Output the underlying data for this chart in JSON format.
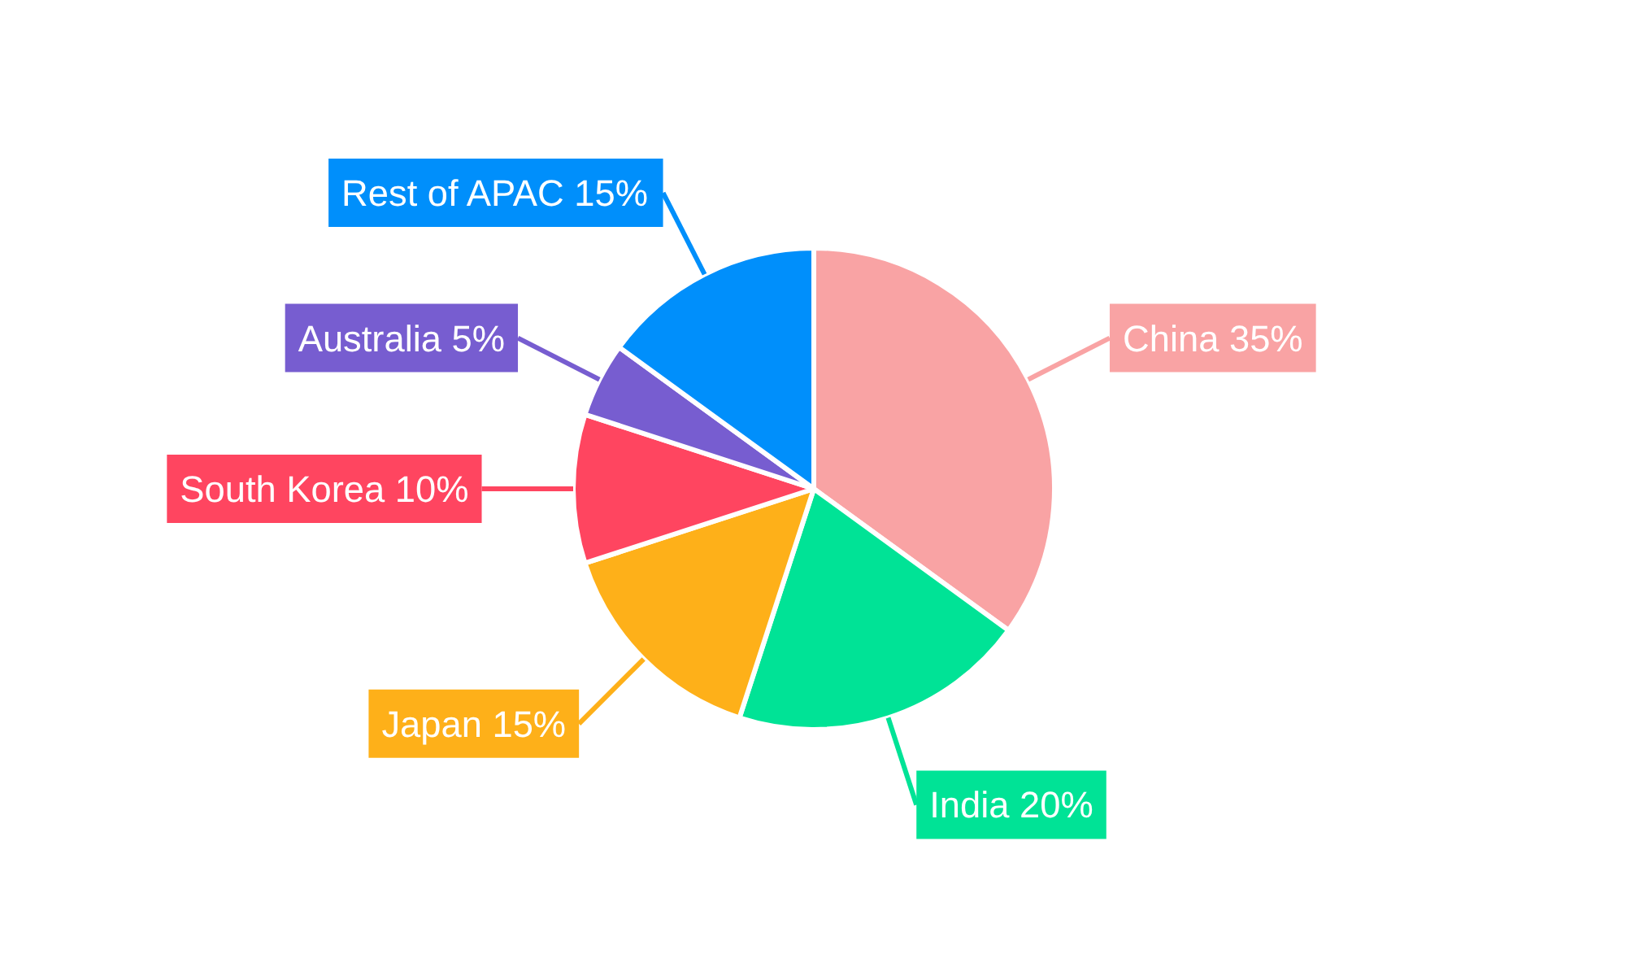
{
  "chart_data": {
    "type": "pie",
    "categories": [
      "China",
      "India",
      "Japan",
      "South Korea",
      "Australia",
      "Rest of APAC"
    ],
    "values": [
      35,
      20,
      15,
      10,
      5,
      15
    ],
    "value_labels": [
      "35%",
      "20%",
      "15%",
      "10%",
      "5%",
      "15%"
    ],
    "colors": [
      "#f9a3a4",
      "#00e396",
      "#feb019",
      "#ff4560",
      "#775dd0",
      "#008ffb"
    ]
  }
}
